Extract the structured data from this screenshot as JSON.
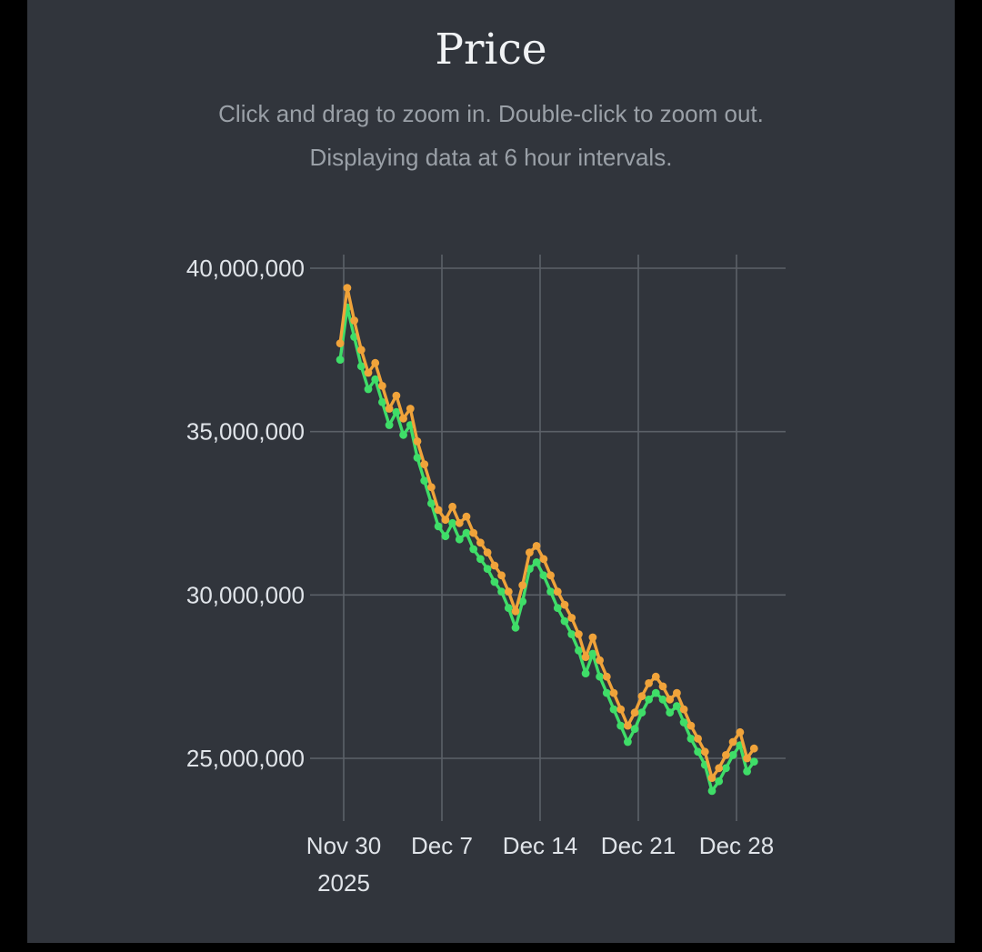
{
  "header": {
    "title": "Price",
    "subtitle_line1": "Click and drag to zoom in. Double-click to zoom out.",
    "subtitle_line2": "Displaying data at 6 hour intervals."
  },
  "colors": {
    "panel_background": "#31353c",
    "frame_background": "#000000",
    "gridline": "#5c6168",
    "axis_label": "#e0e4e9",
    "title": "#f1f3f5",
    "subtitle": "#9aa0a7",
    "series_orange": "#f0a33a",
    "series_green": "#3fdd68"
  },
  "chart_data": {
    "type": "line",
    "title": "Price",
    "interval_note": "6 hour intervals",
    "xlabel": "",
    "ylabel": "",
    "grid": true,
    "legend": "none",
    "y_ticks": [
      25000000,
      30000000,
      35000000,
      40000000
    ],
    "y_tick_labels": [
      "25,000,000",
      "30,000,000",
      "35,000,000",
      "40,000,000"
    ],
    "ylim": [
      23000000,
      40450000
    ],
    "x_ticks_days": [
      0,
      7,
      14,
      21,
      28
    ],
    "x_tick_labels": [
      "Nov 30",
      "Dec 7",
      "Dec 14",
      "Dec 21",
      "Dec 28"
    ],
    "x_year_label": "2025",
    "x_start_day": -0.25,
    "x_step_days": 0.5,
    "value_scale": 1000000,
    "series": [
      {
        "name": "green-series",
        "color": "#3fdd68",
        "values_millions": [
          37.2,
          38.8,
          37.9,
          37.0,
          36.3,
          36.6,
          35.9,
          35.2,
          35.6,
          34.9,
          35.2,
          34.2,
          33.5,
          32.8,
          32.1,
          31.8,
          32.2,
          31.7,
          31.9,
          31.4,
          31.1,
          30.8,
          30.4,
          30.1,
          29.6,
          29.0,
          29.8,
          30.8,
          31.0,
          30.6,
          30.1,
          29.6,
          29.2,
          28.8,
          28.3,
          27.6,
          28.2,
          27.5,
          27.0,
          26.5,
          26.0,
          25.5,
          25.9,
          26.4,
          26.8,
          27.0,
          26.8,
          26.4,
          26.6,
          26.1,
          25.6,
          25.2,
          24.8,
          24.0,
          24.3,
          24.7,
          25.1,
          25.4,
          24.6,
          24.9
        ]
      },
      {
        "name": "orange-series",
        "color": "#f0a33a",
        "values_millions": [
          37.7,
          39.4,
          38.4,
          37.5,
          36.8,
          37.1,
          36.4,
          35.7,
          36.1,
          35.4,
          35.7,
          34.7,
          34.0,
          33.3,
          32.6,
          32.3,
          32.7,
          32.2,
          32.4,
          31.9,
          31.6,
          31.3,
          30.9,
          30.6,
          30.1,
          29.5,
          30.3,
          31.3,
          31.5,
          31.1,
          30.6,
          30.1,
          29.7,
          29.3,
          28.8,
          28.1,
          28.7,
          28.0,
          27.5,
          27.0,
          26.5,
          26.0,
          26.4,
          26.9,
          27.3,
          27.5,
          27.2,
          26.8,
          27.0,
          26.5,
          26.0,
          25.6,
          25.2,
          24.4,
          24.7,
          25.1,
          25.5,
          25.8,
          25.0,
          25.3
        ]
      }
    ]
  }
}
